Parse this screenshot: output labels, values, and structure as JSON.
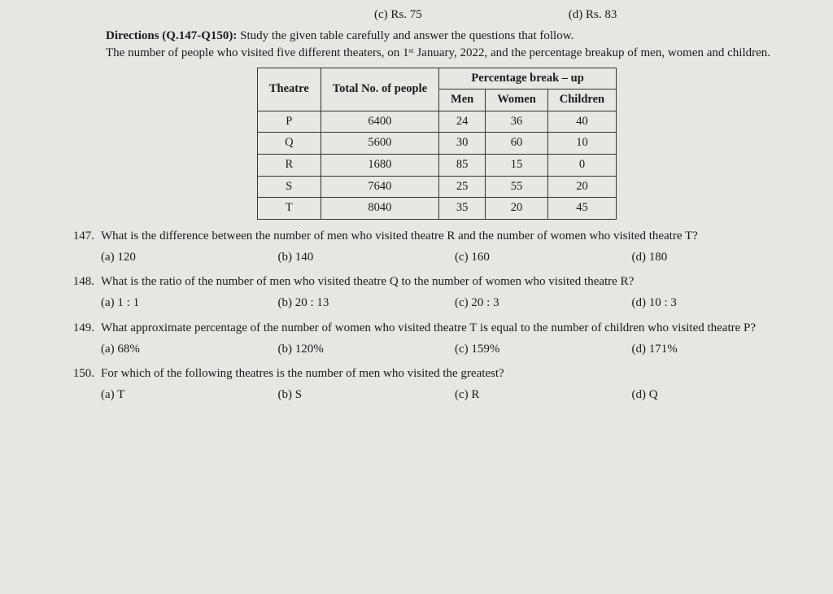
{
  "top_residual_options": {
    "c": "(c) Rs. 75",
    "d": "(d) Rs. 83"
  },
  "directions": {
    "heading": "Directions (Q.147-Q150):",
    "line1": "Study the given table carefully and answer the questions that follow.",
    "line2": "The number of people who visited five different theaters, on 1ˢᵗ January, 2022, and the percentage breakup of men, women and children."
  },
  "table": {
    "headers": {
      "theatre": "Theatre",
      "total": "Total No. of people",
      "pct_span": "Percentage break – up",
      "men": "Men",
      "women": "Women",
      "children": "Children"
    },
    "rows": [
      {
        "theatre": "P",
        "total": "6400",
        "men": "24",
        "women": "36",
        "children": "40"
      },
      {
        "theatre": "Q",
        "total": "5600",
        "men": "30",
        "women": "60",
        "children": "10"
      },
      {
        "theatre": "R",
        "total": "1680",
        "men": "85",
        "women": "15",
        "children": "0"
      },
      {
        "theatre": "S",
        "total": "7640",
        "men": "25",
        "women": "55",
        "children": "20"
      },
      {
        "theatre": "T",
        "total": "8040",
        "men": "35",
        "women": "20",
        "children": "45"
      }
    ]
  },
  "q147": {
    "num": "147.",
    "text": "What is the difference between the number of men who visited theatre R and the number of women who visited theatre T?",
    "a": "(a) 120",
    "b": "(b) 140",
    "c": "(c) 160",
    "d": "(d) 180"
  },
  "q148": {
    "num": "148.",
    "text": "What is the ratio of the number of men who visited theatre Q to the number of women who visited theatre R?",
    "a": "(a) 1 : 1",
    "b": "(b) 20 : 13",
    "c": "(c) 20 : 3",
    "d": "(d) 10 : 3"
  },
  "q149": {
    "num": "149.",
    "text": "What approximate percentage of the number of women who visited theatre T is equal to the number of children who visited theatre P?",
    "a": "(a) 68%",
    "b": "(b) 120%",
    "c": "(c) 159%",
    "d": "(d) 171%"
  },
  "q150": {
    "num": "150.",
    "text": "For which of the following theatres is the number of men who visited the greatest?",
    "a": "(a) T",
    "b": "(b) S",
    "c": "(c) R",
    "d": "(d) Q"
  }
}
